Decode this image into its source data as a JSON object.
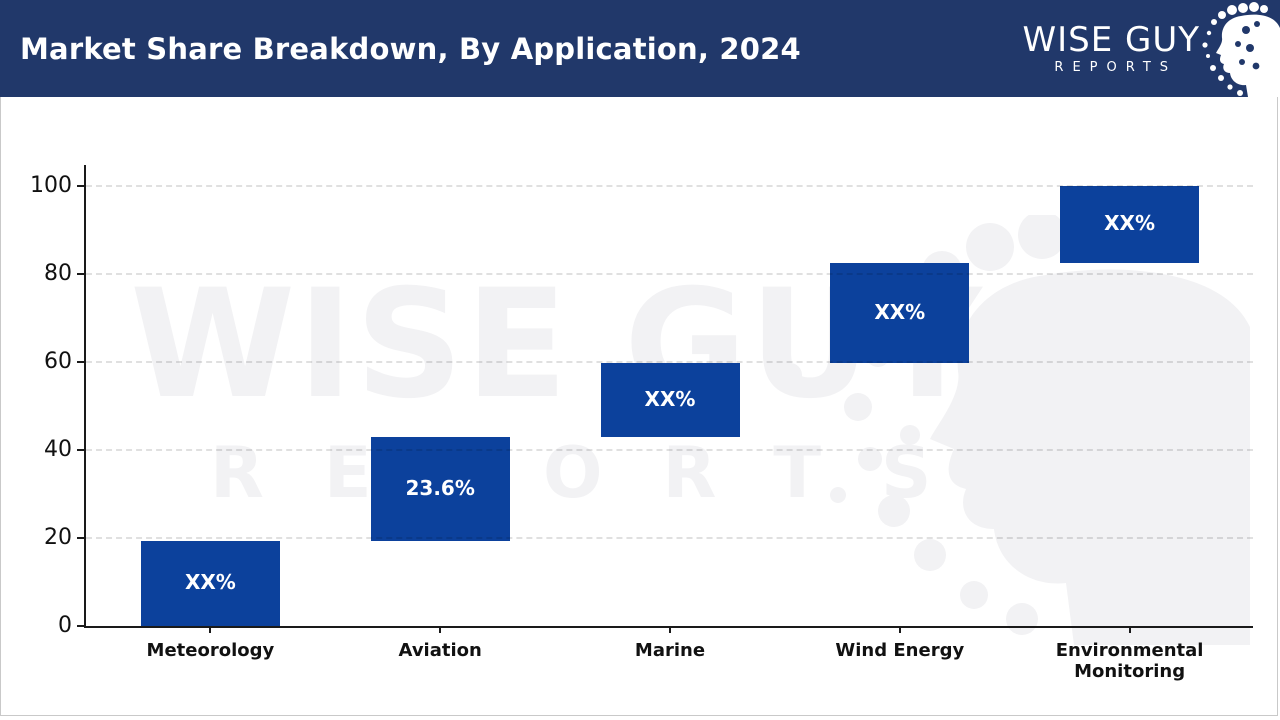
{
  "header": {
    "title": "Market Share Breakdown, By Application, 2024",
    "logo": {
      "line1": "WISE GUY",
      "line2": "REPORTS"
    }
  },
  "watermark": {
    "line1": "WISE GUY",
    "line2": "REPORTS"
  },
  "colors": {
    "header_bg": "#21386a",
    "bar": "#0c419c",
    "bar_label_text": "#ffffff",
    "axis": "#1a1a1a",
    "grid": "#dddddd",
    "watermark": "#f2f2f4"
  },
  "chart_data": {
    "type": "bar",
    "subtype": "waterfall",
    "title": "Market Share Breakdown, By Application, 2024",
    "categories": [
      "Meteorology",
      "Aviation",
      "Marine",
      "Wind Energy",
      "Environmental Monitoring"
    ],
    "series": [
      {
        "name": "Market Share",
        "starts": [
          0,
          19.4,
          43.0,
          59.8,
          82.6
        ],
        "ends": [
          19.4,
          43.0,
          59.8,
          82.6,
          100.0
        ],
        "values": [
          19.4,
          23.6,
          16.8,
          22.8,
          17.4
        ]
      }
    ],
    "bar_labels": [
      "XX%",
      "23.6%",
      "XX%",
      "XX%",
      "XX%"
    ],
    "xlabel": "",
    "ylabel": "",
    "yticks": [
      0,
      20,
      40,
      60,
      80,
      100
    ],
    "ylim": [
      0,
      105
    ],
    "grid": true,
    "grid_style": "dashed",
    "legend": "none"
  }
}
